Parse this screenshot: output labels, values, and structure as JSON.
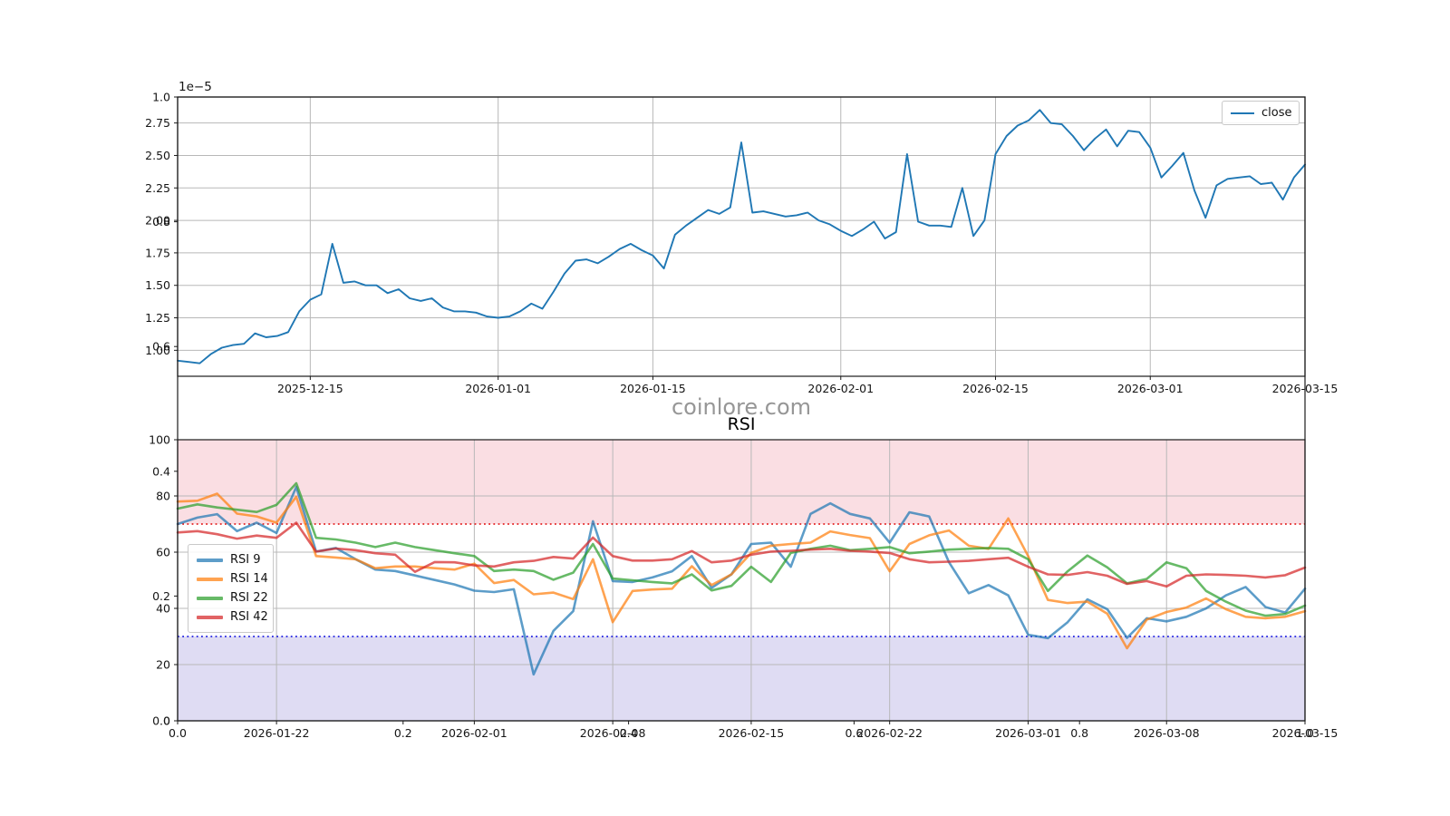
{
  "watermark": "coinlore.com",
  "rsi_chart_title": "RSI",
  "top_chart": {
    "offset_text": "1e−5"
  },
  "overlay_axis": {
    "x_tick_labels": [
      "0.0",
      "0.2",
      "0.4",
      "0.6",
      "0.8",
      "1.0"
    ],
    "y_tick_labels": [
      "1.0",
      "0.8",
      "0.6",
      "0.4",
      "0.2",
      "0.0"
    ]
  },
  "chart_data": [
    {
      "type": "line",
      "name": "price-panel",
      "x_start": "2025-12-03",
      "x_end": "2026-03-15",
      "x_freq": "daily",
      "x_tick_labels": [
        "2025-12-15",
        "2026-01-01",
        "2026-01-15",
        "2026-02-01",
        "2026-02-15",
        "2026-03-01",
        "2026-03-15"
      ],
      "y_tick_values": [
        1.0,
        1.25,
        1.5,
        1.75,
        2.0,
        2.25,
        2.5,
        2.75
      ],
      "y_tick_labels": [
        "1.00",
        "1.25",
        "1.50",
        "1.75",
        "2.00",
        "2.25",
        "2.50",
        "2.75"
      ],
      "ylim": [
        0.8,
        2.95
      ],
      "y_unit_multiplier": "1e-5",
      "grid": true,
      "legend_position": "top-right",
      "series": [
        {
          "name": "close",
          "color": "#1f77b4",
          "values": [
            0.92,
            0.91,
            0.9,
            0.97,
            1.02,
            1.04,
            1.05,
            1.13,
            1.1,
            1.11,
            1.14,
            1.3,
            1.39,
            1.43,
            1.82,
            1.52,
            1.53,
            1.5,
            1.5,
            1.44,
            1.47,
            1.4,
            1.38,
            1.4,
            1.33,
            1.3,
            1.3,
            1.29,
            1.26,
            1.25,
            1.26,
            1.3,
            1.36,
            1.32,
            1.45,
            1.59,
            1.69,
            1.7,
            1.67,
            1.72,
            1.78,
            1.82,
            1.77,
            1.73,
            1.63,
            1.89,
            1.96,
            2.02,
            2.08,
            2.05,
            2.1,
            2.6,
            2.06,
            2.07,
            2.05,
            2.03,
            2.04,
            2.06,
            2.0,
            1.97,
            1.92,
            1.88,
            1.93,
            1.99,
            1.86,
            1.91,
            2.51,
            1.99,
            1.96,
            1.96,
            1.95,
            2.25,
            1.88,
            2.0,
            2.51,
            2.65,
            2.73,
            2.77,
            2.85,
            2.75,
            2.74,
            2.65,
            2.54,
            2.63,
            2.7,
            2.57,
            2.69,
            2.68,
            2.56,
            2.33,
            2.42,
            2.52,
            2.23,
            2.02,
            2.27,
            2.32,
            2.33,
            2.34,
            2.28,
            2.29,
            2.16,
            2.33,
            2.43
          ]
        }
      ]
    },
    {
      "type": "line",
      "name": "rsi-panel",
      "title": "RSI",
      "x_start": "2026-01-17",
      "x_end": "2026-03-15",
      "x_freq": "daily",
      "x_tick_labels": [
        "2026-01-22",
        "2026-02-01",
        "2026-02-08",
        "2026-02-15",
        "2026-02-22",
        "2026-03-01",
        "2026-03-08",
        "2026-03-15"
      ],
      "y_tick_values": [
        0,
        20,
        40,
        60,
        80,
        100
      ],
      "y_tick_labels": [
        "0",
        "20",
        "40",
        "60",
        "80",
        "100"
      ],
      "ylim": [
        0,
        100
      ],
      "grid": true,
      "overbought_line": {
        "y": 70,
        "color": "#e00000",
        "style": "dotted"
      },
      "oversold_line": {
        "y": 30,
        "color": "#0000dd",
        "style": "dotted"
      },
      "bands": [
        {
          "from": 70,
          "to": 100,
          "color": "rgba(220,20,60,0.14)",
          "meaning": "overbought-zone"
        },
        {
          "from": 0,
          "to": 30,
          "color": "rgba(25,10,170,0.14)",
          "meaning": "oversold-zone"
        }
      ],
      "legend_position": "center-left",
      "series": [
        {
          "name": "RSI 9",
          "color": "#1f77b4",
          "values": [
            70,
            72.3,
            73.5,
            67.5,
            70.5,
            66.8,
            83.2,
            60.2,
            61.5,
            57.5,
            53.8,
            53.3,
            51.7,
            50.1,
            48.5,
            46.3,
            45.8,
            46.8,
            16.5,
            32,
            39,
            71,
            49.7,
            49.4,
            51,
            53.2,
            58.6,
            47.3,
            52.1,
            62.9,
            63.4,
            54.8,
            73.6,
            77.4,
            73.6,
            72,
            63.4,
            74.2,
            72.7,
            56.4,
            45.4,
            48.3,
            44.6,
            30.6,
            29.4,
            35.1,
            43.2,
            39.7,
            29.5,
            36.5,
            35.4,
            37,
            40,
            44.6,
            47.6,
            40.5,
            38.5,
            47
          ]
        },
        {
          "name": "RSI 14",
          "color": "#ff7f0e",
          "values": [
            78,
            78.3,
            80.8,
            73.7,
            72.7,
            70.5,
            79.7,
            58.6,
            58.1,
            57.5,
            54.3,
            54.9,
            54.9,
            54.3,
            53.8,
            55.9,
            49,
            50.1,
            45,
            45.6,
            43.3,
            57.5,
            35.1,
            46.2,
            46.7,
            47,
            55,
            48.3,
            52.1,
            59.7,
            62.3,
            62.9,
            63.4,
            67.4,
            66.1,
            65,
            53.2,
            62.9,
            66,
            67.7,
            62.3,
            61.2,
            72,
            58.6,
            43,
            41.9,
            42.4,
            38.1,
            25.8,
            36,
            38.7,
            40.3,
            43.5,
            39.7,
            37,
            36.5,
            37,
            39
          ]
        },
        {
          "name": "RSI 22",
          "color": "#2ca02c",
          "values": [
            75.5,
            77,
            75.9,
            75.1,
            74.3,
            76.8,
            84.5,
            65.1,
            64.5,
            63.4,
            61.8,
            63.4,
            61.8,
            60.7,
            59.6,
            58.6,
            53.3,
            53.8,
            53.3,
            50.2,
            52.7,
            62.9,
            50.6,
            50,
            49.4,
            48.9,
            52.1,
            46.4,
            48,
            54.8,
            49.4,
            59.7,
            61.2,
            62.3,
            60.7,
            61.2,
            61.8,
            59.6,
            60.2,
            60.9,
            61.2,
            61.5,
            61.2,
            57.5,
            46.2,
            53.2,
            58.8,
            54.6,
            48.9,
            50.5,
            56.4,
            54.3,
            46.2,
            42.4,
            39.2,
            37.4,
            38,
            41
          ]
        },
        {
          "name": "RSI 42",
          "color": "#d62728",
          "values": [
            67,
            67.5,
            66.4,
            64.8,
            65.9,
            65.1,
            70.5,
            60.2,
            61.3,
            60.7,
            59.6,
            59.1,
            53,
            56.5,
            56.4,
            55.3,
            54.9,
            56.4,
            56.9,
            58.3,
            57.7,
            65.2,
            58.6,
            57,
            57,
            57.5,
            60.4,
            56.4,
            57,
            59.1,
            60.2,
            60.5,
            60.9,
            61.2,
            60.5,
            60.2,
            59.7,
            57.5,
            56.4,
            56.6,
            56.9,
            57.5,
            58,
            54.8,
            52.1,
            51.9,
            52.9,
            51.6,
            48.7,
            49.7,
            47.8,
            51.6,
            52.1,
            51.9,
            51.6,
            51,
            51.8,
            54.5
          ]
        }
      ]
    }
  ]
}
